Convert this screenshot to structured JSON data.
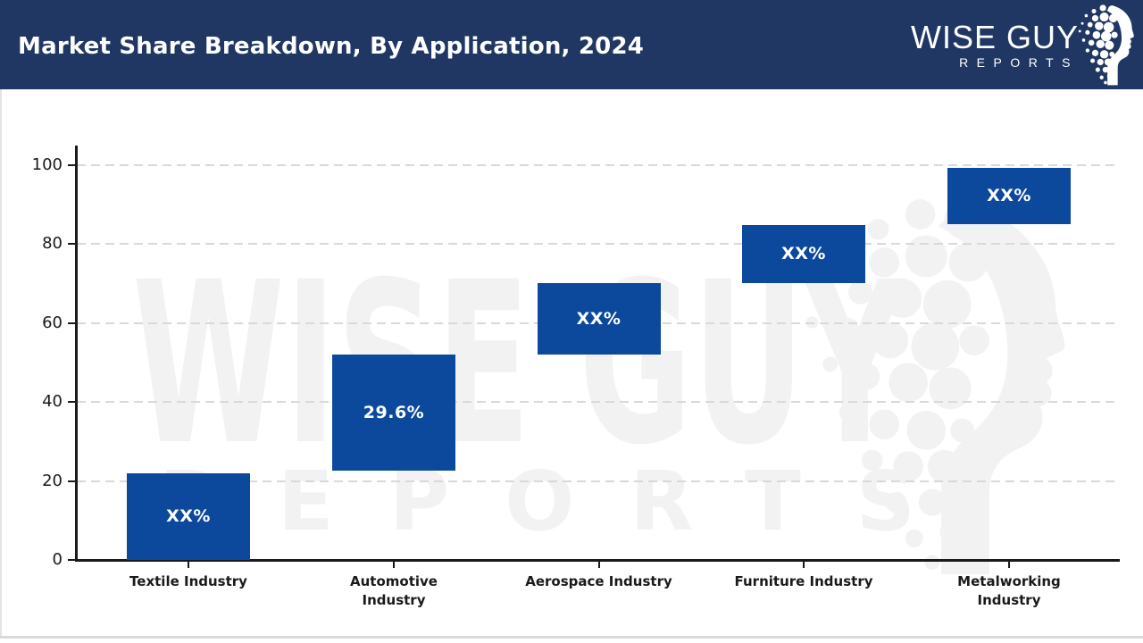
{
  "header": {
    "title": "Market Share Breakdown, By Application, 2024",
    "logo": {
      "line1": "WISE GUY",
      "line2": "REPORTS"
    }
  },
  "watermark": {
    "line1": "WISE GUY",
    "line2": "REPORTS"
  },
  "chart_data": {
    "type": "bar",
    "subtype": "waterfall-style floating bars, cumulative market share to 100%",
    "title": "Market Share Breakdown, By Application, 2024",
    "categories": [
      "Textile Industry",
      "Automotive Industry",
      "Aerospace Industry",
      "Furniture Industry",
      "Metalworking Industry"
    ],
    "category_label_lines": [
      [
        "Textile Industry"
      ],
      [
        "Automotive",
        "Industry"
      ],
      [
        "Aerospace Industry"
      ],
      [
        "Furniture Industry"
      ],
      [
        "Metalworking",
        "Industry"
      ]
    ],
    "bars": [
      {
        "category": "Textile Industry",
        "start": 0,
        "end": 22,
        "label": "XX%"
      },
      {
        "category": "Automotive Industry",
        "start": 22.5,
        "end": 52,
        "label": "29.6%"
      },
      {
        "category": "Aerospace Industry",
        "start": 52,
        "end": 70,
        "label": "XX%"
      },
      {
        "category": "Furniture Industry",
        "start": 70.2,
        "end": 84.8,
        "label": "XX%"
      },
      {
        "category": "Metalworking Industry",
        "start": 85,
        "end": 99.3,
        "label": "XX%"
      }
    ],
    "xlabel": "",
    "ylabel": "",
    "ylim": [
      0,
      104
    ],
    "yticks": [
      0,
      20,
      40,
      60,
      80,
      100
    ],
    "grid": "horizontal dashed gridlines at y ticks",
    "legend": "none",
    "bar_color": "#0C489C"
  },
  "colors": {
    "header_bg": "#213763",
    "bar": "#0C489C",
    "bar_label": "#ffffff",
    "grid": "#d9d9d9",
    "axis": "#1a1a1a",
    "watermark": "#f2f2f3",
    "page_bg": "#ffffff"
  }
}
